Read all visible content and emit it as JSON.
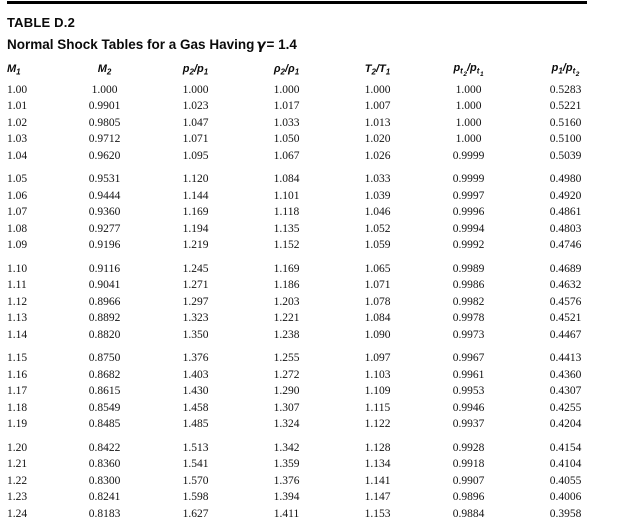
{
  "table": {
    "id": "TABLE D.2",
    "title_prefix": "Normal Shock Tables for a Gas Having",
    "gamma": "γ",
    "gamma_eq": "= 1.4",
    "headers": [
      {
        "name": "m1",
        "segments": [
          {
            "t": "M",
            "k": "b"
          },
          {
            "t": "1",
            "k": "s"
          }
        ]
      },
      {
        "name": "m2",
        "segments": [
          {
            "t": "M",
            "k": "b"
          },
          {
            "t": "2",
            "k": "s"
          }
        ]
      },
      {
        "name": "p2-p1",
        "segments": [
          {
            "t": "p",
            "k": "b"
          },
          {
            "t": "2",
            "k": "s"
          },
          {
            "t": "/",
            "k": "b"
          },
          {
            "t": "p",
            "k": "b"
          },
          {
            "t": "1",
            "k": "s"
          }
        ]
      },
      {
        "name": "rho2-rho1",
        "segments": [
          {
            "t": "ρ",
            "k": "b"
          },
          {
            "t": "2",
            "k": "s"
          },
          {
            "t": "/",
            "k": "b"
          },
          {
            "t": "ρ",
            "k": "b"
          },
          {
            "t": "1",
            "k": "s"
          }
        ]
      },
      {
        "name": "t2-t1",
        "segments": [
          {
            "t": "T",
            "k": "b"
          },
          {
            "t": "2",
            "k": "s"
          },
          {
            "t": "/",
            "k": "b"
          },
          {
            "t": "T",
            "k": "b"
          },
          {
            "t": "1",
            "k": "s"
          }
        ]
      },
      {
        "name": "pt2-pt1",
        "segments": [
          {
            "t": "p",
            "k": "b"
          },
          {
            "t": "t",
            "k": "s"
          },
          {
            "t": "2",
            "k": "s2"
          },
          {
            "t": "/",
            "k": "b"
          },
          {
            "t": "p",
            "k": "b"
          },
          {
            "t": "t",
            "k": "s"
          },
          {
            "t": "1",
            "k": "s2"
          }
        ]
      },
      {
        "name": "p1-pt2",
        "segments": [
          {
            "t": "p",
            "k": "b"
          },
          {
            "t": "1",
            "k": "s"
          },
          {
            "t": "/",
            "k": "b"
          },
          {
            "t": "p",
            "k": "b"
          },
          {
            "t": "t",
            "k": "s"
          },
          {
            "t": "2",
            "k": "s2"
          }
        ]
      }
    ],
    "row_groups": [
      [
        [
          "1.00",
          "1.000",
          "1.000",
          "1.000",
          "1.000",
          "1.000",
          "0.5283"
        ],
        [
          "1.01",
          "0.9901",
          "1.023",
          "1.017",
          "1.007",
          "1.000",
          "0.5221"
        ],
        [
          "1.02",
          "0.9805",
          "1.047",
          "1.033",
          "1.013",
          "1.000",
          "0.5160"
        ],
        [
          "1.03",
          "0.9712",
          "1.071",
          "1.050",
          "1.020",
          "1.000",
          "0.5100"
        ],
        [
          "1.04",
          "0.9620",
          "1.095",
          "1.067",
          "1.026",
          "0.9999",
          "0.5039"
        ]
      ],
      [
        [
          "1.05",
          "0.9531",
          "1.120",
          "1.084",
          "1.033",
          "0.9999",
          "0.4980"
        ],
        [
          "1.06",
          "0.9444",
          "1.144",
          "1.101",
          "1.039",
          "0.9997",
          "0.4920"
        ],
        [
          "1.07",
          "0.9360",
          "1.169",
          "1.118",
          "1.046",
          "0.9996",
          "0.4861"
        ],
        [
          "1.08",
          "0.9277",
          "1.194",
          "1.135",
          "1.052",
          "0.9994",
          "0.4803"
        ],
        [
          "1.09",
          "0.9196",
          "1.219",
          "1.152",
          "1.059",
          "0.9992",
          "0.4746"
        ]
      ],
      [
        [
          "1.10",
          "0.9116",
          "1.245",
          "1.169",
          "1.065",
          "0.9989",
          "0.4689"
        ],
        [
          "1.11",
          "0.9041",
          "1.271",
          "1.186",
          "1.071",
          "0.9986",
          "0.4632"
        ],
        [
          "1.12",
          "0.8966",
          "1.297",
          "1.203",
          "1.078",
          "0.9982",
          "0.4576"
        ],
        [
          "1.13",
          "0.8892",
          "1.323",
          "1.221",
          "1.084",
          "0.9978",
          "0.4521"
        ],
        [
          "1.14",
          "0.8820",
          "1.350",
          "1.238",
          "1.090",
          "0.9973",
          "0.4467"
        ]
      ],
      [
        [
          "1.15",
          "0.8750",
          "1.376",
          "1.255",
          "1.097",
          "0.9967",
          "0.4413"
        ],
        [
          "1.16",
          "0.8682",
          "1.403",
          "1.272",
          "1.103",
          "0.9961",
          "0.4360"
        ],
        [
          "1.17",
          "0.8615",
          "1.430",
          "1.290",
          "1.109",
          "0.9953",
          "0.4307"
        ],
        [
          "1.18",
          "0.8549",
          "1.458",
          "1.307",
          "1.115",
          "0.9946",
          "0.4255"
        ],
        [
          "1.19",
          "0.8485",
          "1.485",
          "1.324",
          "1.122",
          "0.9937",
          "0.4204"
        ]
      ],
      [
        [
          "1.20",
          "0.8422",
          "1.513",
          "1.342",
          "1.128",
          "0.9928",
          "0.4154"
        ],
        [
          "1.21",
          "0.8360",
          "1.541",
          "1.359",
          "1.134",
          "0.9918",
          "0.4104"
        ],
        [
          "1.22",
          "0.8300",
          "1.570",
          "1.376",
          "1.141",
          "0.9907",
          "0.4055"
        ],
        [
          "1.23",
          "0.8241",
          "1.598",
          "1.394",
          "1.147",
          "0.9896",
          "0.4006"
        ],
        [
          "1.24",
          "0.8183",
          "1.627",
          "1.411",
          "1.153",
          "0.9884",
          "0.3958"
        ]
      ]
    ]
  }
}
